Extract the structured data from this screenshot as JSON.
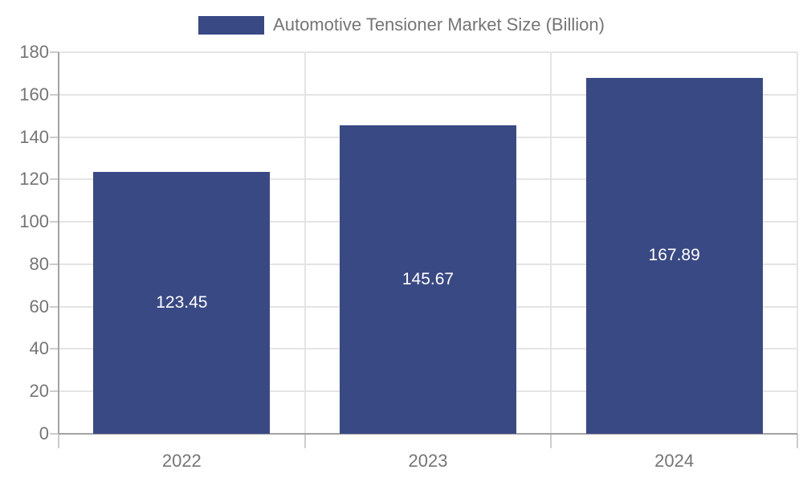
{
  "chart_data": {
    "type": "bar",
    "title": "Automotive Tensioner Market Size (Billion)",
    "categories": [
      "2022",
      "2023",
      "2024"
    ],
    "series": [
      {
        "name": "Automotive Tensioner Market Size (Billion)",
        "values": [
          123.45,
          145.67,
          167.89
        ]
      }
    ],
    "value_labels": [
      "123.45",
      "145.67",
      "167.89"
    ],
    "xlabel": "",
    "ylabel": "",
    "ylim": [
      0,
      180
    ],
    "yticks": [
      0,
      20,
      40,
      60,
      80,
      100,
      120,
      140,
      160,
      180
    ],
    "grid": true,
    "legend_position": "top",
    "colors": {
      "bar": "#394984",
      "grid": "#e4e4e4",
      "axis": "#a3a3a3",
      "tick": "#cccccc",
      "label_text": "#757575",
      "value_text": "#ffffff",
      "background": "#ffffff"
    }
  }
}
